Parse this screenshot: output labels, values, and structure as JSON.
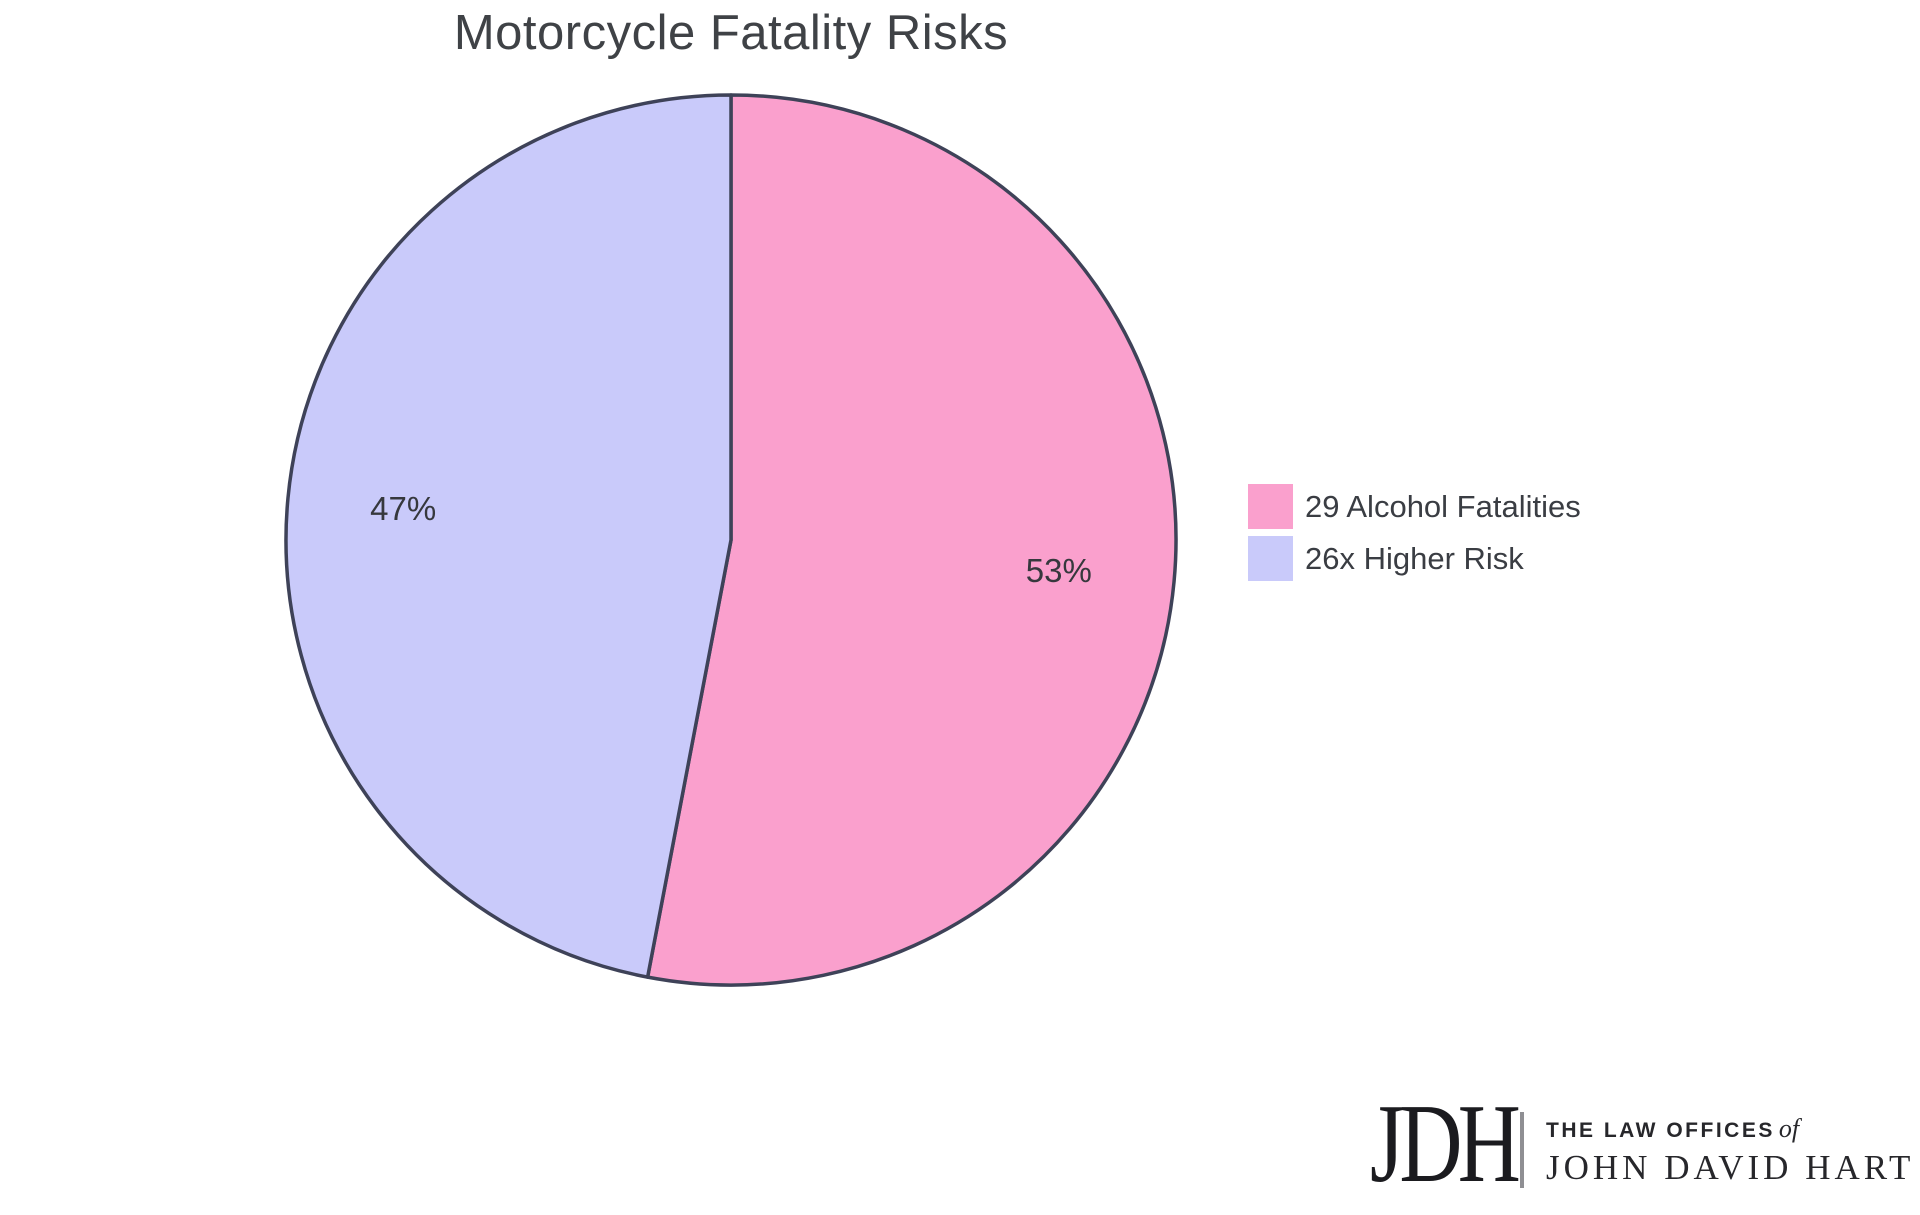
{
  "chart_data": {
    "type": "pie",
    "title": "Motorcycle Fatality Risks",
    "slices": [
      {
        "label": "29 Alcohol Fatalities",
        "value": 53,
        "percent_label": "53%",
        "color": "#FAA0CD"
      },
      {
        "label": "26x Higher Risk",
        "value": 47,
        "percent_label": "47%",
        "color": "#C9CAFA"
      }
    ],
    "start_angle_deg": 0,
    "direction": "clockwise",
    "stroke_color": "#3E4258",
    "stroke_width": 3.5,
    "label_color": "#36383D",
    "title_color": "#3F4246",
    "legend_position": "right"
  },
  "branding": {
    "monogram": "JDH",
    "tagline_caps": "THE LAW OFFICES",
    "tagline_of": "of",
    "firm_name": "JOHN DAVID HART"
  }
}
